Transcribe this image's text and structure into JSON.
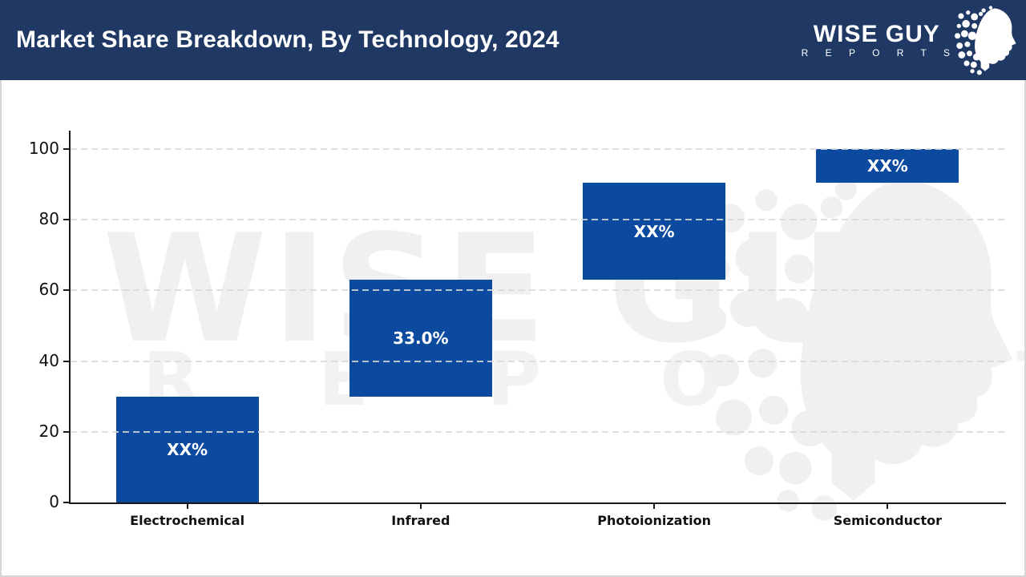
{
  "header": {
    "title": "Market Share Breakdown, By Technology, 2024",
    "bg_color": "#1F3864",
    "logo": {
      "wordmark": "WISE GUY",
      "subtext": "R E P O R T S"
    }
  },
  "watermark": {
    "line1": "WISE GUY",
    "line2": "R E P O R T S"
  },
  "chart_data": {
    "type": "bar",
    "subtype": "floating-waterfall",
    "title": "Market Share Breakdown, By Technology, 2024",
    "categories": [
      "Electrochemical",
      "Infrared",
      "Photoionization",
      "Semiconductor"
    ],
    "segments": [
      {
        "category": "Electrochemical",
        "start": 0,
        "end": 30,
        "value_pct": 30,
        "label": "XX%"
      },
      {
        "category": "Infrared",
        "start": 30,
        "end": 63,
        "value_pct": 33,
        "label": "33.0%"
      },
      {
        "category": "Photoionization",
        "start": 63,
        "end": 90.5,
        "value_pct": 27.5,
        "label": "XX%"
      },
      {
        "category": "Semiconductor",
        "start": 90.5,
        "end": 100,
        "value_pct": 9.5,
        "label": "XX%"
      }
    ],
    "yticks": [
      0,
      20,
      40,
      60,
      80,
      100
    ],
    "ylim": [
      0,
      105
    ],
    "xlabel": "",
    "ylabel": "",
    "legend": "none",
    "grid": "dashed-horizontal",
    "bar_color": "#0C4AA0",
    "bar_label_color": "#ffffff",
    "grid_color": "#d9d9d9",
    "axis_color": "#1a1a1a"
  }
}
